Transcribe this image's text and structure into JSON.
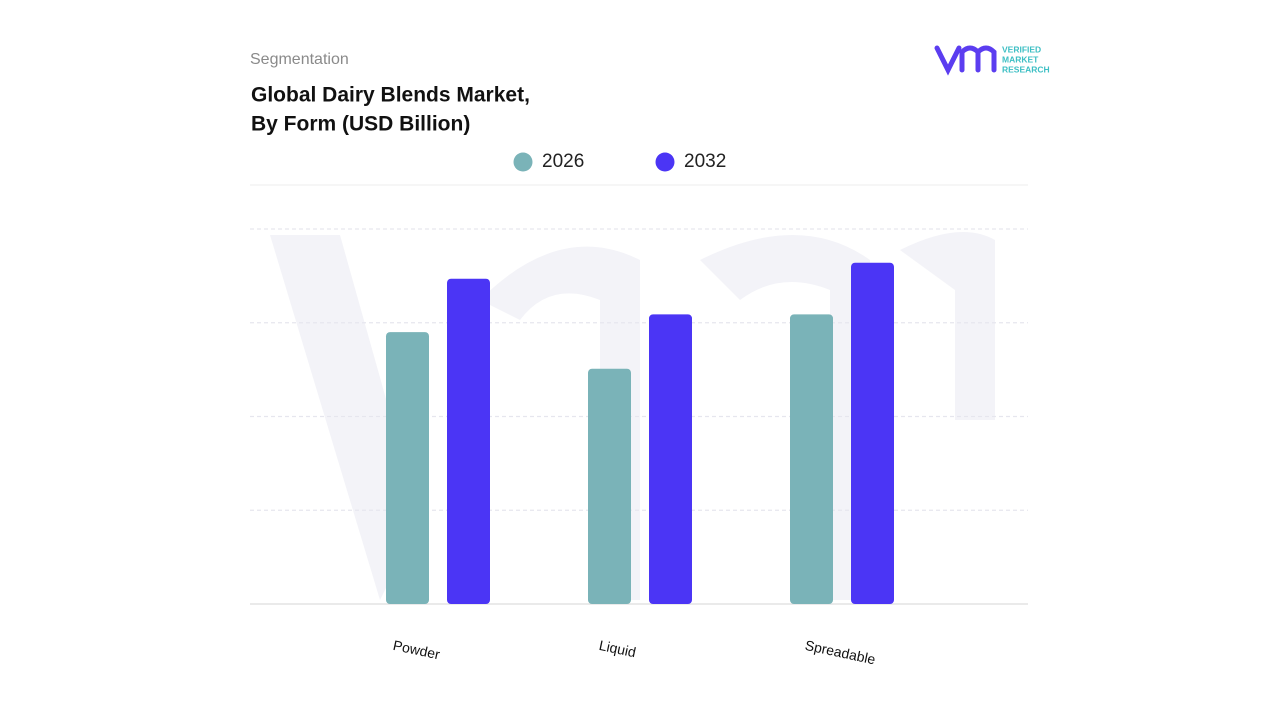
{
  "section": "Segmentation",
  "brand": [
    "VERIFIED",
    "MARKET",
    "RESEARCH"
  ],
  "chart_data": {
    "type": "bar",
    "title": [
      "Global Dairy Blends Market,",
      "By Form (USD Billion)"
    ],
    "categories": [
      "Powder",
      "Liquid",
      "Spreadable"
    ],
    "series": [
      {
        "name": "2026",
        "color": "#7ab3b8",
        "values": [
          2.9,
          2.51,
          3.09
        ]
      },
      {
        "name": "2032",
        "color": "#4b35f5",
        "values": [
          3.47,
          3.09,
          3.64
        ]
      }
    ],
    "ylim": [
      0,
      4
    ],
    "yticks": [
      1,
      2,
      3,
      4
    ],
    "grid": true
  }
}
